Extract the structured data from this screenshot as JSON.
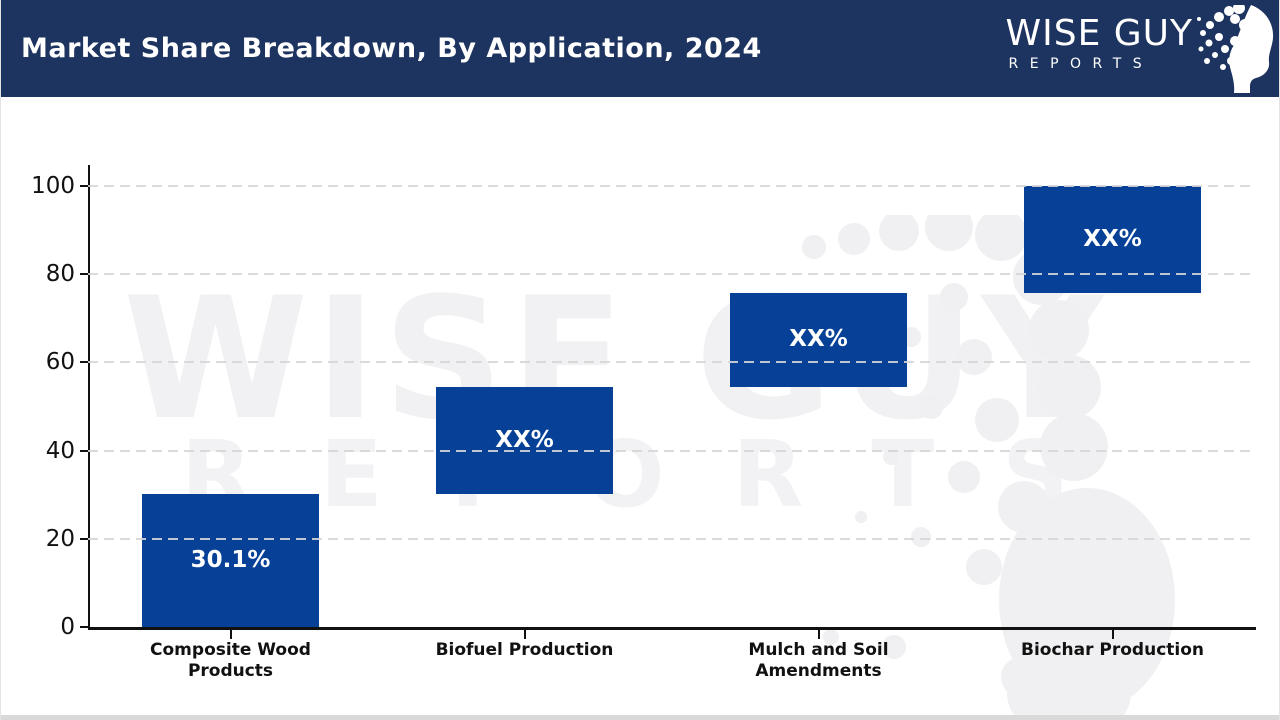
{
  "header": {
    "title": "Market Share Breakdown, By Application, 2024",
    "logo": {
      "line1": "WISE GUY",
      "line2": "REPORTS"
    },
    "bg_color": "#1e3460"
  },
  "watermark": {
    "line1": "WISE GUY",
    "line2": "R E P O R T S"
  },
  "chart_data": {
    "type": "bar",
    "variant": "waterfall-floating-bars",
    "title": "Market Share Breakdown, By Application, 2024",
    "categories": [
      "Composite Wood Products",
      "Biofuel Production",
      "Mulch and Soil Amendments",
      "Biochar Production"
    ],
    "bars": [
      {
        "category": "Composite Wood Products",
        "label_lines": [
          "Composite Wood",
          "Products"
        ],
        "start": 0,
        "end": 30.1,
        "value_label": "30.1%"
      },
      {
        "category": "Biofuel Production",
        "label_lines": [
          "Biofuel Production"
        ],
        "start": 30.1,
        "end": 54.4,
        "value_label": "XX%"
      },
      {
        "category": "Mulch and Soil Amendments",
        "label_lines": [
          "Mulch and Soil",
          "Amendments"
        ],
        "start": 54.4,
        "end": 75.7,
        "value_label": "XX%"
      },
      {
        "category": "Biochar Production",
        "label_lines": [
          "Biochar Production"
        ],
        "start": 75.7,
        "end": 100,
        "value_label": "XX%"
      }
    ],
    "yticks": [
      0,
      20,
      40,
      60,
      80,
      100
    ],
    "ylim": [
      0,
      105
    ],
    "xlabel": "",
    "ylabel": "",
    "bar_color": "#074197",
    "grid": {
      "axis": "y",
      "style": "dashed",
      "color": "#d6d6d6"
    },
    "legend": null
  }
}
